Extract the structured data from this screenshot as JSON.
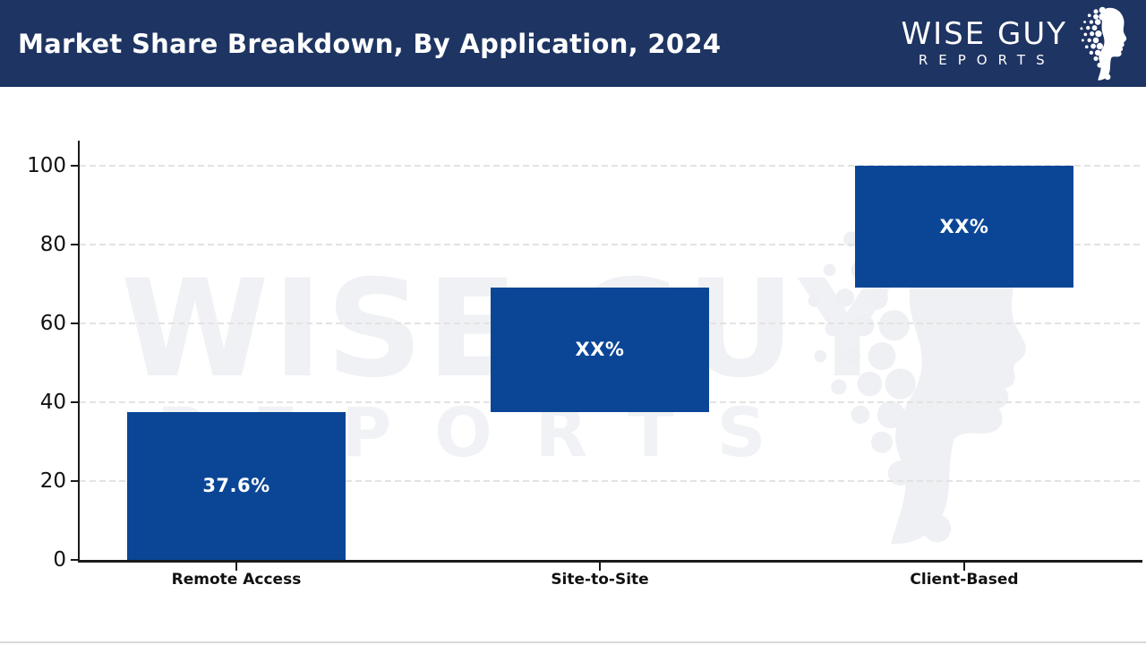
{
  "header": {
    "title": "Market Share Breakdown, By Application, 2024",
    "logo": {
      "main": "WISE GUY",
      "sub": "REPORTS"
    }
  },
  "watermark": {
    "main": "WISE GUY",
    "sub": "REPORTS"
  },
  "colors": {
    "header_bg": "#1e3462",
    "bar": "#0b4696",
    "bar_label": "#ffffff",
    "grid": "#e3e3e3",
    "axis": "#1a1a1a",
    "tick_label": "#111111",
    "watermark": "#f0f1f4"
  },
  "chart_data": {
    "type": "bar",
    "subtype": "cumulative-waterfall",
    "title": "Market Share Breakdown, By Application, 2024",
    "categories": [
      "Remote Access",
      "Site-to-Site",
      "Client-Based"
    ],
    "segments": [
      {
        "category": "Remote Access",
        "start": 0,
        "end": 37.6,
        "value": 37.6,
        "label": "37.6%"
      },
      {
        "category": "Site-to-Site",
        "start": 37.6,
        "end": 69.1,
        "value": 31.5,
        "label": "XX%"
      },
      {
        "category": "Client-Based",
        "start": 69.1,
        "end": 100,
        "value": 30.9,
        "label": "XX%"
      }
    ],
    "ylim": [
      0,
      100
    ],
    "yticks": [
      0,
      20,
      40,
      60,
      80,
      100
    ],
    "xlabel": "",
    "ylabel": "",
    "grid": "horizontal-dashed",
    "legend": "none"
  }
}
